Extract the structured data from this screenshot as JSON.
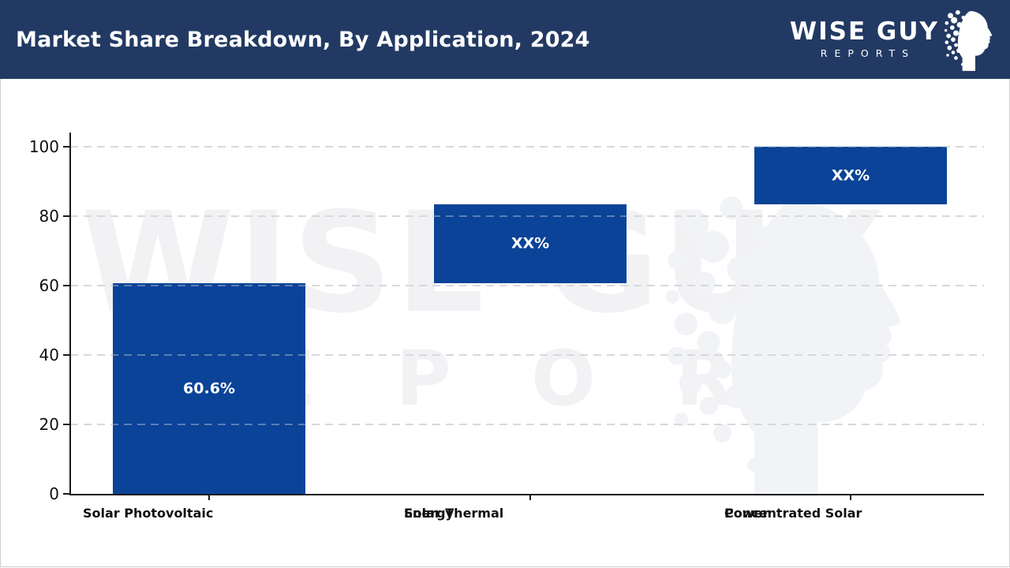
{
  "header": {
    "title": "Market Share Breakdown, By Application, 2024",
    "logo": {
      "line1": "WISE GUY",
      "line2": "REPORTS"
    },
    "background_color": "#223a63"
  },
  "watermark": {
    "line1": "WISE GUY",
    "line2": "R E P O R T S"
  },
  "chart_data": {
    "type": "bar",
    "subtype": "floating-waterfall",
    "title": "Market Share Breakdown, By Application, 2024",
    "categories": [
      [
        "Solar Photovoltaic"
      ],
      [
        "Solar Thermal",
        "Energy"
      ],
      [
        "Concentrated Solar",
        "Power"
      ]
    ],
    "values": [
      {
        "start": 0,
        "end": 60.6,
        "label": "60.6%"
      },
      {
        "start": 60.6,
        "end": 83.3,
        "label": "XX%"
      },
      {
        "start": 83.3,
        "end": 100,
        "label": "XX%"
      }
    ],
    "ylim": [
      0,
      100
    ],
    "yticks": [
      0,
      20,
      40,
      60,
      80,
      100
    ],
    "grid": "horizontal dashed",
    "legend": "none",
    "bar_color": "#0a4397",
    "bar_label_color": "#ffffff",
    "axis_color": "#1a1a1a",
    "gridline_color": "#d9d9d9"
  }
}
